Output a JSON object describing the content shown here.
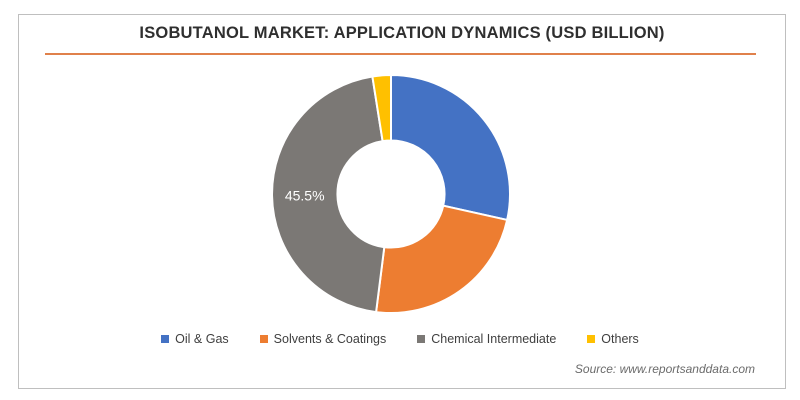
{
  "chart_data": {
    "type": "pie",
    "subtype": "donut",
    "title": "ISOBUTANOL MARKET: APPLICATION DYNAMICS (USD BILLION)",
    "categories": [
      "Oil & Gas",
      "Solvents & Coatings",
      "Chemical Intermediate",
      "Others"
    ],
    "values": [
      28.5,
      23.5,
      45.5,
      2.5
    ],
    "colors": [
      "#4472C4",
      "#ED7D31",
      "#7B7875",
      "#FFC000"
    ],
    "data_labels": [
      "",
      "",
      "45.5%",
      ""
    ],
    "start_angle_deg": 0,
    "direction": "clockwise",
    "hole_ratio": 0.45,
    "legend_position": "bottom",
    "slice_gap_color": "#FFFFFF"
  },
  "source": "Source: www.reportsanddata.com",
  "style_colors": {
    "title_text": "#2F2F2F",
    "title_rule": "#E0814B",
    "frame_border": "#BFBFBF",
    "data_label_text": "#FFFFFF",
    "legend_text": "#3F3F3F",
    "source_text": "#6B6B6B"
  }
}
